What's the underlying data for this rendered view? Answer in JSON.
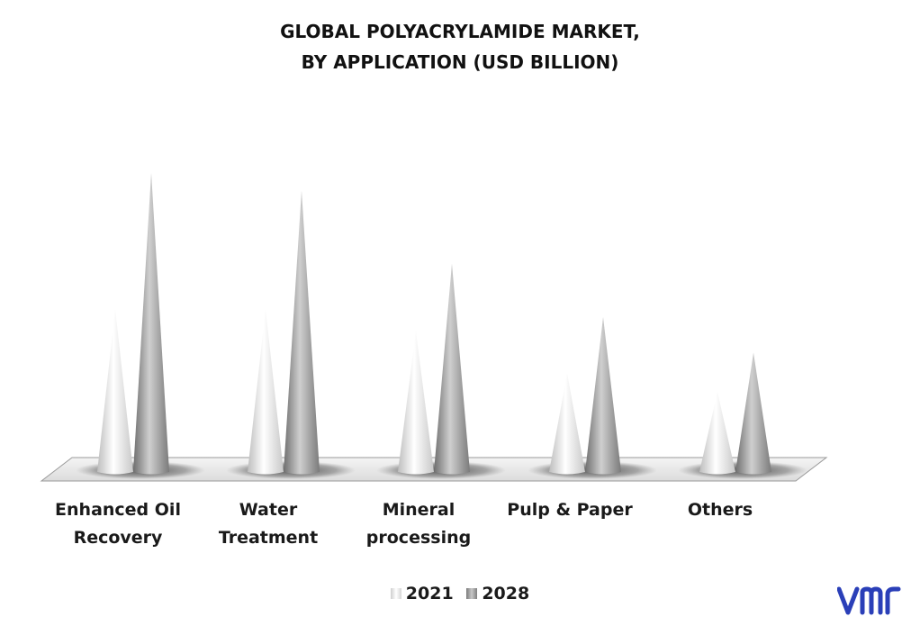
{
  "chart_data": {
    "type": "bar",
    "title_lines": [
      "GLOBAL POLYACRYLAMIDE MARKET,",
      "BY APPLICATION (USD BILLION)"
    ],
    "categories": [
      [
        "Enhanced Oil",
        "Recovery"
      ],
      [
        "Water",
        "Treatment"
      ],
      [
        "Mineral",
        "processing"
      ],
      [
        "Pulp & Paper"
      ],
      [
        "Others"
      ]
    ],
    "series": [
      {
        "name": "2021",
        "values": [
          1.83,
          1.83,
          1.58,
          1.11,
          0.9
        ]
      },
      {
        "name": "2028",
        "values": [
          3.36,
          3.16,
          2.34,
          1.74,
          1.34
        ]
      }
    ],
    "ylim": [
      0,
      3.5
    ],
    "grid": false,
    "legend_position": "bottom",
    "colors": {
      "2021": "#e6e6e6",
      "2028": "#8f8f8f"
    }
  },
  "brand": {
    "logo_text": "vmr",
    "logo_color": "#2a3fb8"
  }
}
